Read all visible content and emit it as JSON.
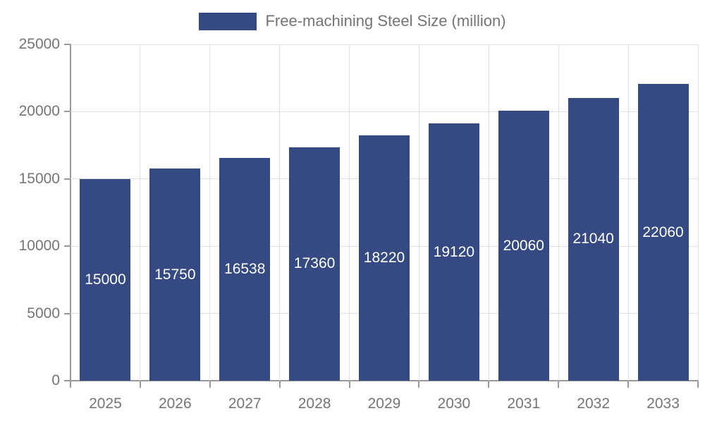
{
  "legend": {
    "label": "Free-machining Steel Size (million)"
  },
  "chart_data": {
    "type": "bar",
    "title": "Free-machining Steel Size (million)",
    "categories": [
      "2025",
      "2026",
      "2027",
      "2028",
      "2029",
      "2030",
      "2031",
      "2032",
      "2033"
    ],
    "values": [
      15000,
      15750,
      16538,
      17360,
      18220,
      19120,
      20060,
      21040,
      22060
    ],
    "value_labels": [
      "15000",
      "15750",
      "16538",
      "17360",
      "18220",
      "19120",
      "20060",
      "21040",
      "22060"
    ],
    "xlabel": "",
    "ylabel": "",
    "ylim": [
      0,
      25000
    ],
    "yticks": [
      0,
      5000,
      10000,
      15000,
      20000,
      25000
    ],
    "ytick_labels": [
      "0",
      "5000",
      "10000",
      "15000",
      "20000",
      "25000"
    ],
    "grid": true,
    "legend_position": "top",
    "bar_color": "#354A82",
    "bar_label_color": "#ffffff",
    "axis_text_color": "#757575",
    "grid_color": "#e0e0e0",
    "axis_line_color": "#999999",
    "background_color": "#ffffff"
  }
}
